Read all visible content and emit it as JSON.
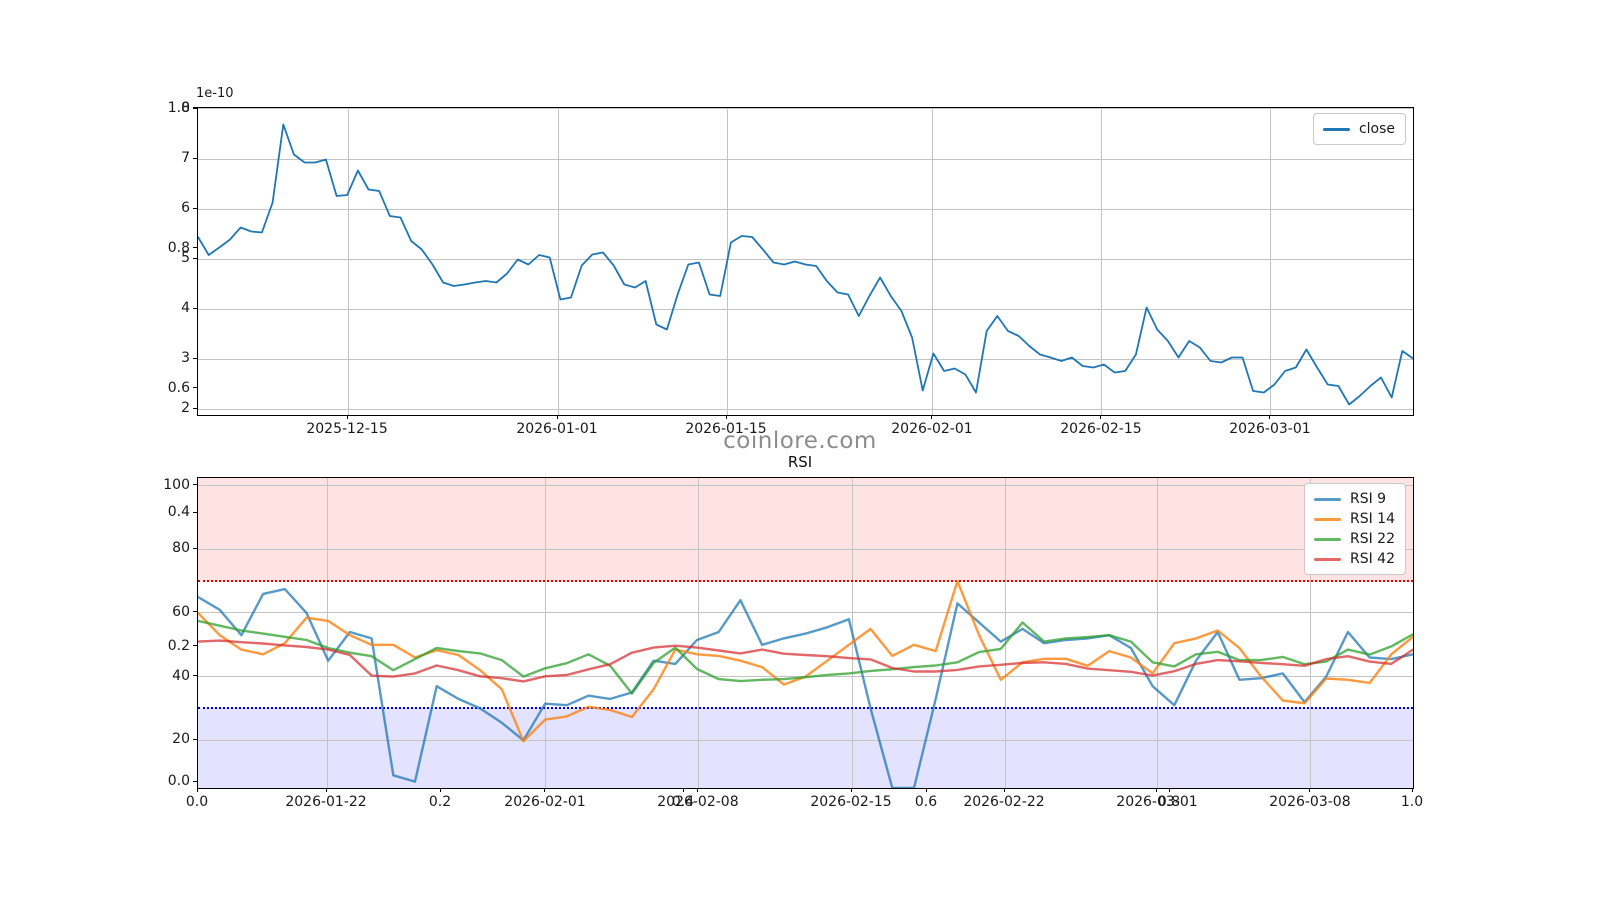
{
  "watermark": "coinlore.com",
  "chart_data": [
    {
      "type": "line",
      "title": "",
      "offset_text": "1e-10",
      "ylabel": "",
      "xlabel": "",
      "ylim": [
        1.88,
        8.02
      ],
      "grid": true,
      "legend_position": "upper right",
      "yticks": [
        8,
        7,
        6,
        5,
        4,
        3,
        2
      ],
      "fig_yticks": [
        {
          "label": "1.0",
          "f": 0.003
        },
        {
          "label": "0.8",
          "f": 0.459
        },
        {
          "label": "0.6",
          "f": 0.915
        }
      ],
      "xticks": [
        {
          "label": "2025-12-15",
          "f": 0.1235
        },
        {
          "label": "2026-01-01",
          "f": 0.2963
        },
        {
          "label": "2026-01-15",
          "f": 0.4354
        },
        {
          "label": "2026-02-01",
          "f": 0.6049
        },
        {
          "label": "2026-02-15",
          "f": 0.744
        },
        {
          "label": "2026-03-01",
          "f": 0.8831
        }
      ],
      "series": [
        {
          "name": "close",
          "color": "#1f77b4",
          "opacity": 1,
          "width": 1.8,
          "values": [
            5.44,
            5.08,
            5.23,
            5.39,
            5.63,
            5.55,
            5.53,
            6.13,
            7.69,
            7.09,
            6.93,
            6.93,
            6.99,
            6.26,
            6.28,
            6.77,
            6.39,
            6.36,
            5.86,
            5.83,
            5.36,
            5.19,
            4.89,
            4.53,
            4.46,
            4.49,
            4.53,
            4.56,
            4.53,
            4.71,
            4.99,
            4.89,
            5.08,
            5.03,
            4.19,
            4.23,
            4.87,
            5.09,
            5.13,
            4.87,
            4.49,
            4.43,
            4.56,
            3.69,
            3.59,
            4.29,
            4.89,
            4.93,
            4.29,
            4.26,
            5.33,
            5.46,
            5.44,
            5.19,
            4.93,
            4.89,
            4.95,
            4.89,
            4.86,
            4.56,
            4.33,
            4.29,
            3.86,
            4.26,
            4.63,
            4.26,
            3.96,
            3.43,
            2.37,
            3.11,
            2.76,
            2.81,
            2.69,
            2.33,
            3.56,
            3.86,
            3.56,
            3.46,
            3.26,
            3.09,
            3.03,
            2.96,
            3.03,
            2.86,
            2.83,
            2.89,
            2.73,
            2.76,
            3.09,
            4.03,
            3.59,
            3.36,
            3.03,
            3.36,
            3.23,
            2.96,
            2.93,
            3.03,
            3.03,
            2.36,
            2.33,
            2.49,
            2.76,
            2.83,
            3.19,
            2.83,
            2.49,
            2.46,
            2.09,
            2.26,
            2.46,
            2.63,
            2.23,
            3.16,
            3.01
          ]
        }
      ]
    },
    {
      "type": "line",
      "title": "RSI",
      "ylim": [
        5,
        102.4
      ],
      "grid": true,
      "legend_position": "upper right",
      "yticks": [
        100,
        80,
        60,
        40,
        20
      ],
      "fig_yticks": [
        {
          "label": "0.4",
          "f": 0.113
        },
        {
          "label": "0.2",
          "f": 0.545
        },
        {
          "label": "0.0",
          "f": 0.981
        }
      ],
      "xticks": [
        {
          "label": "2026-01-22",
          "f": 0.1062
        },
        {
          "label": "2026-02-01",
          "f": 0.2864
        },
        {
          "label": "2026-02-08",
          "f": 0.4123
        },
        {
          "label": "2026-02-15",
          "f": 0.5383
        },
        {
          "label": "2026-02-22",
          "f": 0.6642
        },
        {
          "label": "2026-03-01",
          "f": 0.7901
        },
        {
          "label": "2026-03-08",
          "f": 0.916
        }
      ],
      "xticks_numeric": [
        {
          "label": "0.0",
          "f": 0.0
        },
        {
          "label": "0.2",
          "f": 0.2
        },
        {
          "label": "0.4",
          "f": 0.4
        },
        {
          "label": "0.6",
          "f": 0.6
        },
        {
          "label": "0.8",
          "f": 0.8
        },
        {
          "label": "1.0",
          "f": 1.0
        }
      ],
      "bands": [
        {
          "from": 70,
          "to": 102.4,
          "color": "rgba(255,40,40,0.13)",
          "name": "overbought-band"
        },
        {
          "from": 5,
          "to": 30,
          "color": "rgba(40,40,255,0.13)",
          "name": "oversold-band"
        }
      ],
      "hlines": [
        {
          "y": 70,
          "color": "#e00000",
          "name": "overbought-line"
        },
        {
          "y": 30,
          "color": "#0000cc",
          "name": "oversold-line"
        }
      ],
      "series": [
        {
          "name": "RSI 9",
          "color": "#1f77b4",
          "opacity": 0.75,
          "width": 2.4,
          "values": [
            65,
            61,
            53,
            66,
            67.5,
            60,
            45,
            54,
            52,
            9,
            7,
            37,
            33,
            30,
            25.5,
            20,
            31.5,
            31,
            34,
            33,
            35,
            45,
            44,
            51.5,
            54,
            64,
            50,
            52,
            53.5,
            55.5,
            58,
            30,
            5,
            5,
            33,
            63,
            57,
            51,
            55,
            50.5,
            51.5,
            52,
            53,
            49,
            37,
            31,
            45,
            54,
            39,
            39.5,
            41,
            32,
            40,
            54,
            46,
            45.5,
            47
          ]
        },
        {
          "name": "RSI 14",
          "color": "#ff7f0e",
          "opacity": 0.8,
          "width": 2.4,
          "values": [
            60,
            53,
            48.5,
            47,
            50.5,
            58.5,
            57.5,
            53,
            50,
            50,
            46,
            48.3,
            46.8,
            42,
            36,
            19.7,
            26.5,
            27.5,
            30.5,
            29.5,
            27.3,
            36,
            48.5,
            47,
            46.5,
            45,
            43,
            37.5,
            40,
            45,
            50,
            55,
            46.5,
            50,
            48,
            70,
            53,
            39,
            44.5,
            45.6,
            45.6,
            43.4,
            48,
            46,
            41,
            50.5,
            52,
            54.5,
            49,
            40,
            32.5,
            31.6,
            39.4,
            39,
            38,
            47,
            52.5
          ]
        },
        {
          "name": "RSI 22",
          "color": "#2ca02c",
          "opacity": 0.75,
          "width": 2.4,
          "values": [
            57.5,
            56,
            54.5,
            53.5,
            52.5,
            51.5,
            49,
            47.5,
            46.4,
            42,
            45.5,
            49,
            48,
            47.3,
            45.2,
            40,
            42.6,
            44.2,
            47,
            43.4,
            34.7,
            44.3,
            49.1,
            42.4,
            39.2,
            38.6,
            39,
            39.2,
            39.8,
            40.5,
            41,
            41.8,
            42.3,
            43,
            43.5,
            44.5,
            47.7,
            48.7,
            57,
            51,
            52,
            52.4,
            53,
            51,
            44.5,
            43.2,
            47,
            47.8,
            45.2,
            45.2,
            46.2,
            43.9,
            44.7,
            48.5,
            46.9,
            49.5,
            53.3
          ]
        },
        {
          "name": "RSI 42",
          "color": "#d62728",
          "opacity": 0.7,
          "width": 2.4,
          "values": [
            51,
            51.3,
            50.8,
            50.4,
            49.8,
            49.3,
            48.5,
            46.8,
            40.3,
            40,
            41,
            43.5,
            42,
            40.1,
            39.5,
            38.5,
            40.1,
            40.5,
            42.3,
            43.9,
            47.5,
            49.1,
            49.7,
            49.1,
            48.2,
            47.3,
            48.5,
            47.2,
            46.8,
            46.4,
            45.8,
            45.4,
            42.7,
            41.6,
            41.6,
            42.1,
            43.2,
            43.7,
            44.3,
            44.5,
            44,
            42.5,
            42,
            41.5,
            40.3,
            41.7,
            44,
            45.2,
            44.8,
            44.3,
            43.9,
            43.4,
            45.5,
            46.4,
            44.7,
            44,
            48.5
          ]
        }
      ]
    }
  ]
}
